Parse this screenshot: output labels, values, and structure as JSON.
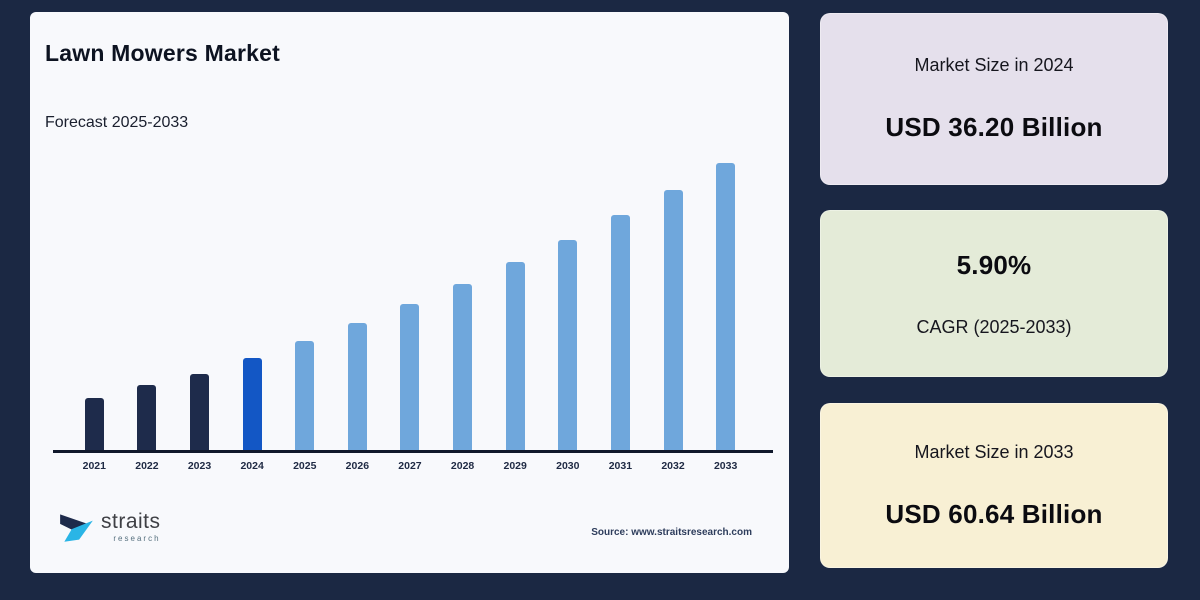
{
  "panel": {
    "title": "Lawn Mowers Market",
    "subtitle": "Forecast 2025-2033",
    "source_text": "Source: www.straitsresearch.com",
    "logo": {
      "brand": "straits",
      "brand_sub": "research"
    }
  },
  "chart_data": {
    "type": "bar",
    "title": "Lawn Mowers Market",
    "subtitle": "Forecast 2025-2033",
    "unit": "USD Billion",
    "categories": [
      "2021",
      "2022",
      "2023",
      "2024",
      "2025",
      "2026",
      "2027",
      "2028",
      "2029",
      "2030",
      "2031",
      "2032",
      "2033"
    ],
    "values": [
      31.2,
      32.9,
      34.2,
      36.2,
      38.34,
      40.6,
      42.99,
      45.53,
      48.22,
      51.06,
      54.07,
      57.26,
      60.64
    ],
    "labeled_points": {
      "2024": "USD 36.20 Billion",
      "2033": "USD 60.64 Billion"
    },
    "cagr": "5.90%",
    "bar_types": [
      "historical",
      "historical",
      "historical",
      "base_year",
      "forecast",
      "forecast",
      "forecast",
      "forecast",
      "forecast",
      "forecast",
      "forecast",
      "forecast",
      "forecast"
    ],
    "series_colors": {
      "historical": "#1e2b4b",
      "base_year": "#1357c5",
      "forecast": "#6fa7dc"
    },
    "ylim": [
      24.5,
      62
    ],
    "grid": false,
    "legend": false,
    "y_axis_shown": false,
    "xlabel": "",
    "ylabel": ""
  },
  "cards": [
    {
      "line1": "Market Size in 2024",
      "line2": "USD 36.20 Billion",
      "bg": "#e5e0ec"
    },
    {
      "line1": "5.90%",
      "line2": "CAGR (2025-2033)",
      "bg": "#e4ebd8"
    },
    {
      "line1": "Market Size in 2033",
      "line2": "USD 60.64 Billion",
      "bg": "#f8f0d4"
    }
  ],
  "colors": {
    "page_bg": "#1b2843",
    "panel_bg": "#f8f9fc",
    "axis": "#10182b"
  }
}
